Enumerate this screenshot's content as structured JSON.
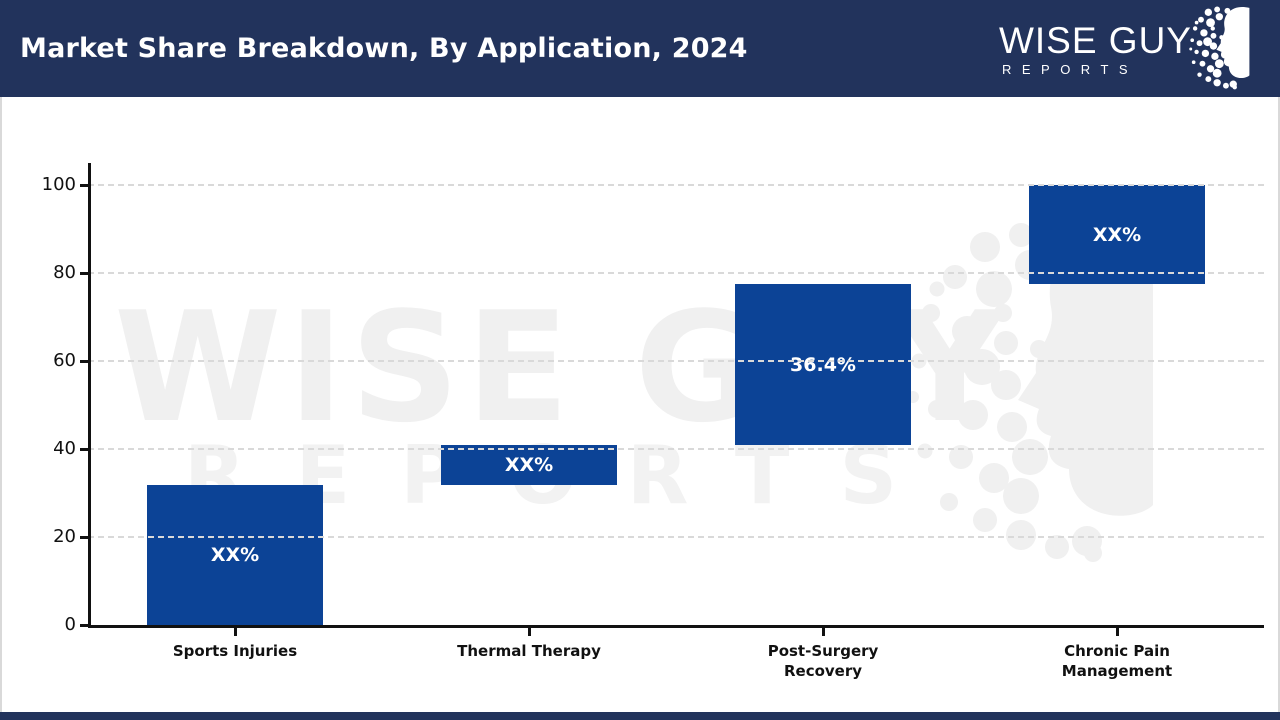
{
  "header": {
    "title": "Market Share Breakdown, By Application, 2024",
    "logo": {
      "line1": "WISE GUY",
      "line2": "REPORTS"
    }
  },
  "watermark": {
    "line1": "WISE GUY",
    "line2": "REPORTS"
  },
  "chart_data": {
    "type": "bar",
    "subtype": "waterfall",
    "title": "Market Share Breakdown, By Application, 2024",
    "categories": [
      [
        "Sports Injuries"
      ],
      [
        "Thermal Therapy"
      ],
      [
        "Post-Surgery",
        "Recovery"
      ],
      [
        "Chronic Pain",
        "Management"
      ]
    ],
    "segments": [
      {
        "name": "Sports Injuries",
        "start": 0,
        "end": 31.8,
        "value": 31.8,
        "label": "XX%"
      },
      {
        "name": "Thermal Therapy",
        "start": 31.8,
        "end": 41.0,
        "value": 9.2,
        "label": "XX%"
      },
      {
        "name": "Post-Surgery Recovery",
        "start": 41.0,
        "end": 77.4,
        "value": 36.4,
        "label": "36.4%"
      },
      {
        "name": "Chronic Pain Management",
        "start": 77.4,
        "end": 100,
        "value": 22.6,
        "label": "XX%"
      }
    ],
    "y_ticks": [
      0,
      20,
      40,
      60,
      80,
      100
    ],
    "ylim": [
      0,
      105
    ],
    "xlabel": "",
    "ylabel": "",
    "grid": "horizontal-dashed",
    "legend": "none"
  },
  "colors": {
    "header_bg": "#22335c",
    "footer_bg": "#22335c",
    "bar_fill": "#0c4396",
    "bar_label": "#ffffff",
    "grid_line": "#d9d9d9",
    "axis_line": "#111111",
    "watermark": "#f0f0f0",
    "watermark_sub": "#f2f2f2"
  }
}
